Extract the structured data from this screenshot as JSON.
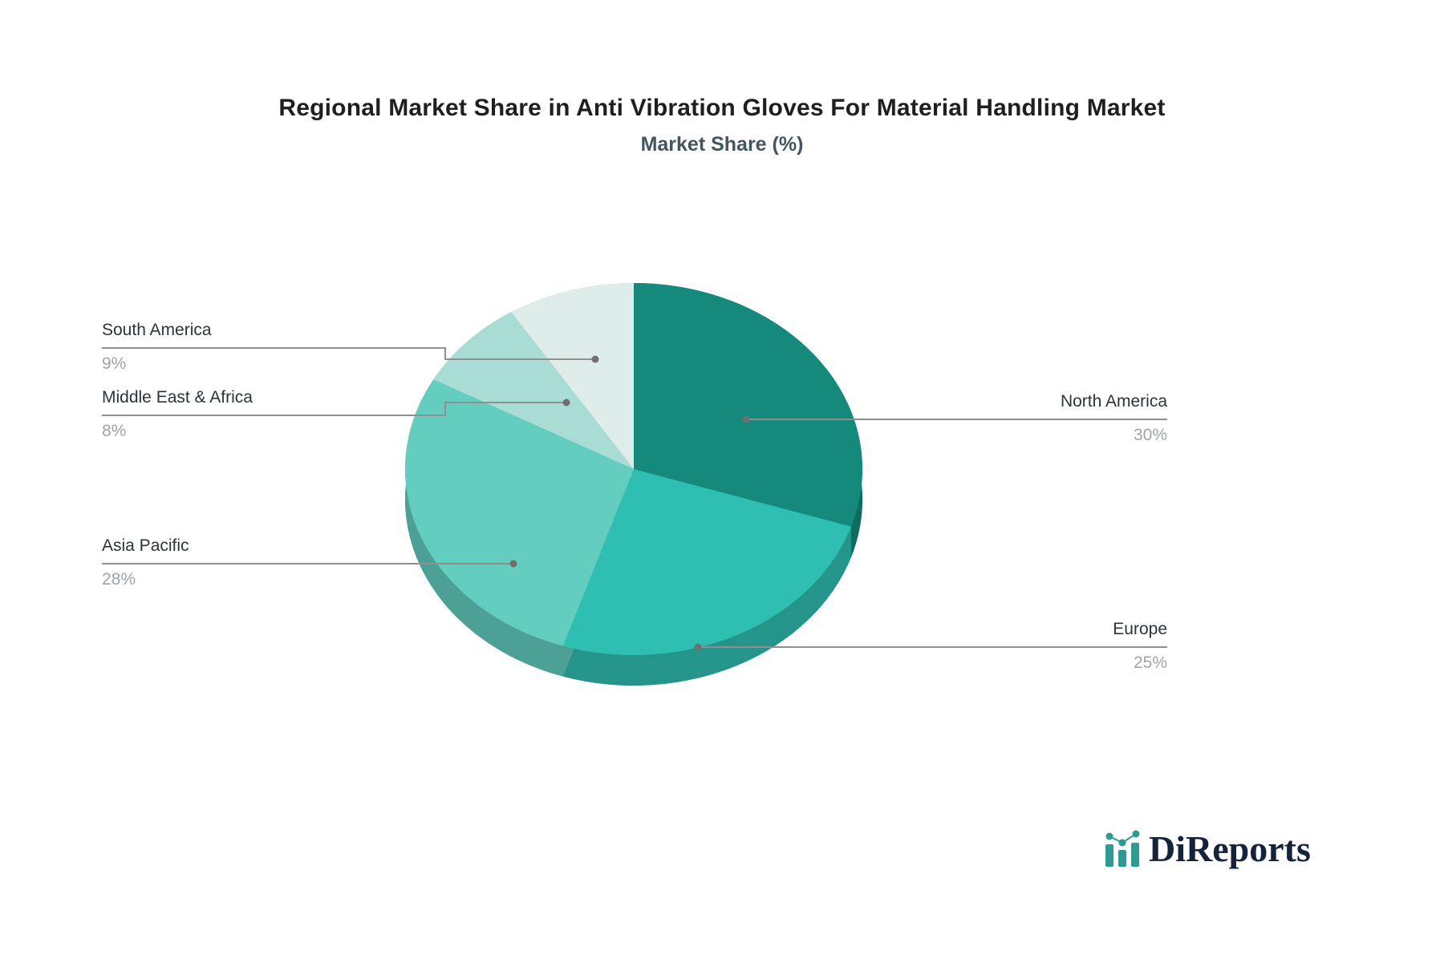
{
  "chart_data": {
    "type": "pie",
    "style": "3d",
    "title": "Regional Market Share in Anti Vibration Gloves For Material Handling Market",
    "subtitle": "Market Share (%)",
    "unit": "%",
    "direction": "clockwise",
    "start_angle_deg": 0,
    "labels": [
      "North America",
      "Europe",
      "Asia Pacific",
      "Middle East & Africa",
      "South America"
    ],
    "values": [
      30,
      25,
      28,
      8,
      9
    ],
    "value_labels": [
      "30%",
      "25%",
      "28%",
      "8%",
      "9%"
    ],
    "colors": [
      "#15897C",
      "#2FBFB2",
      "#63CDBF",
      "#A8DCD5",
      "#DEEDE9"
    ],
    "legend_position": "callout-labels",
    "grid": false
  },
  "styles": {
    "leader_line_color": "#8f8f8f",
    "leader_dot_color": "#6f6f6f",
    "label_text_color": "#2b3438",
    "value_text_color": "#9fa4a8",
    "title_color": "#1f1f1f",
    "subtitle_color": "#44555f",
    "logo_color": "#16233d",
    "logo_icon_color": "#2f9a93"
  },
  "branding": {
    "logo_text": "DiReports"
  }
}
